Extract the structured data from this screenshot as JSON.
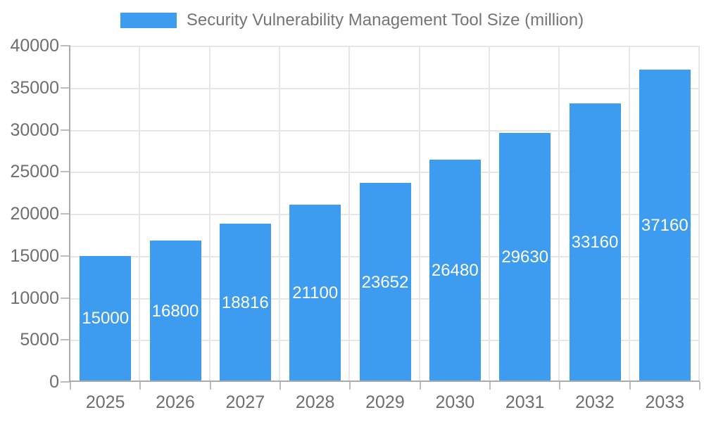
{
  "chart_data": {
    "type": "bar",
    "title": "Security Vulnerability Management Tool Size (million)",
    "categories": [
      "2025",
      "2026",
      "2027",
      "2028",
      "2029",
      "2030",
      "2031",
      "2032",
      "2033"
    ],
    "values": [
      15000,
      16800,
      18816,
      21100,
      23652,
      26480,
      29630,
      33160,
      37160
    ],
    "xlabel": "",
    "ylabel": "",
    "ylim": [
      0,
      40000
    ],
    "yticks": [
      0,
      5000,
      10000,
      15000,
      20000,
      25000,
      30000,
      35000,
      40000
    ],
    "grid": true,
    "legend_position": "top-center",
    "value_label_position": "inside-center",
    "colors": {
      "bar": "#3d9bf0",
      "grid": "#e6e6e6",
      "axis": "#ababab",
      "tick": "#bdbdbd",
      "axis_text": "#6e6e6e",
      "title_text": "#757575",
      "value_label_text": "#ffffff",
      "background": "#ffffff"
    }
  }
}
